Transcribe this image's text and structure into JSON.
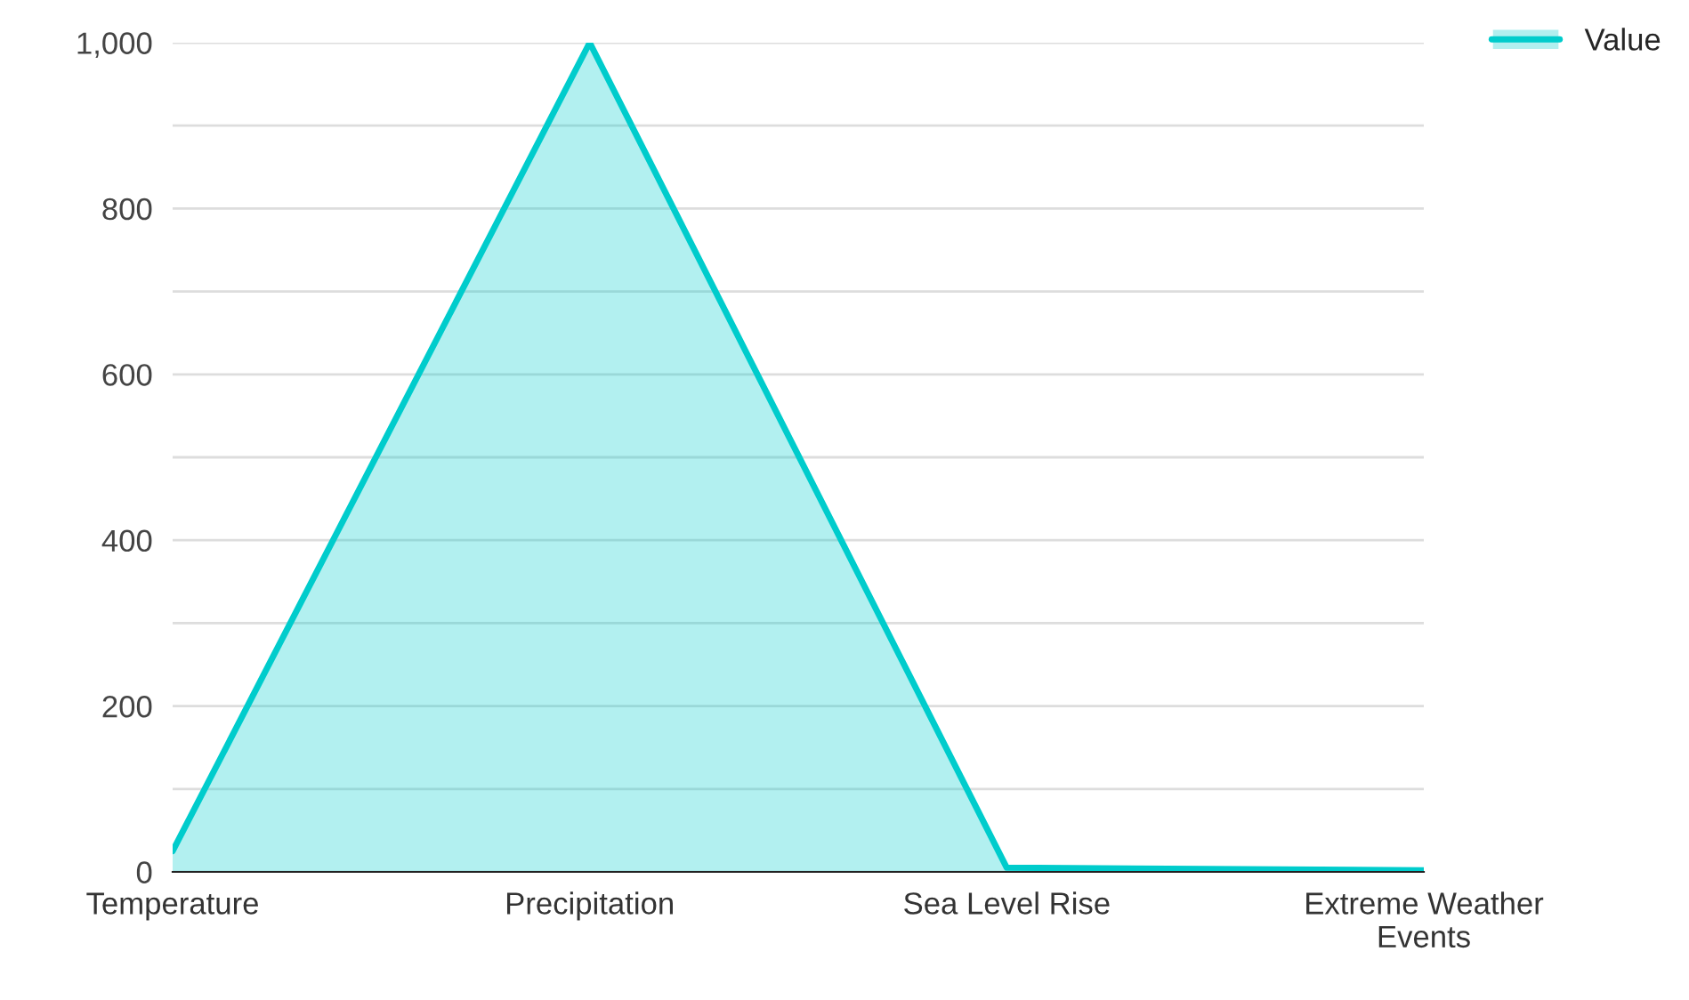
{
  "chart_data": {
    "type": "area",
    "categories": [
      "Temperature",
      "Precipitation",
      "Sea Level Rise",
      "Extreme Weather Events"
    ],
    "series": [
      {
        "name": "Value",
        "color": "#00cccc",
        "values": [
          25,
          1000,
          5,
          2
        ]
      }
    ],
    "ylim": [
      0,
      1000
    ],
    "yticks": [
      0,
      {
        "value": 100,
        "label": null
      },
      200,
      {
        "value": 300,
        "label": null
      },
      {
        "value": 400,
        "label": "400"
      },
      {
        "value": 500,
        "label": null
      },
      600,
      {
        "value": 700,
        "label": null
      },
      800,
      {
        "value": 900,
        "label": null
      },
      {
        "value": 1000,
        "label": "1,000"
      }
    ],
    "grid": "y",
    "legend": "top right"
  }
}
